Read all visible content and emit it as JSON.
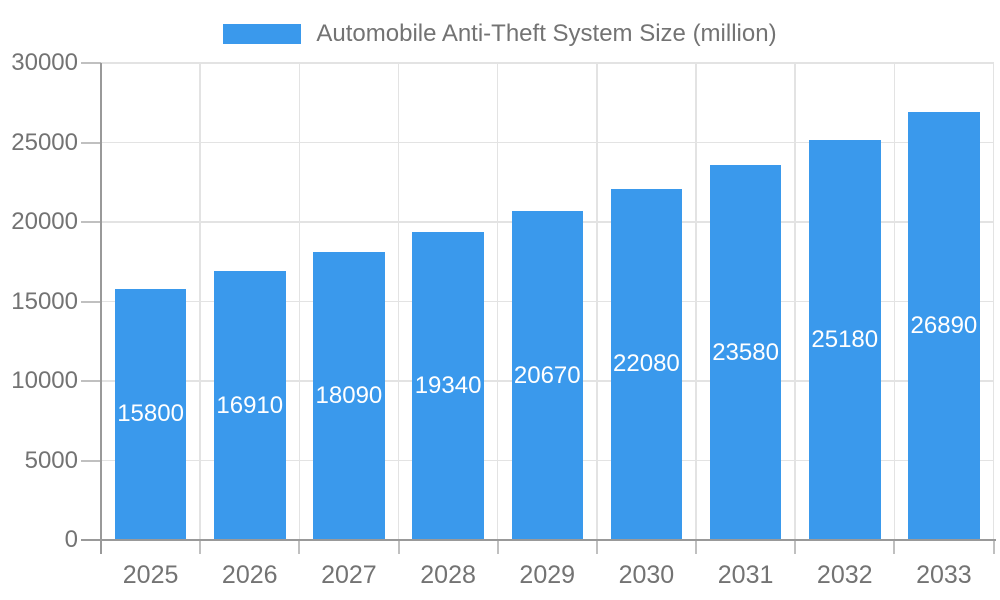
{
  "chart_data": {
    "type": "bar",
    "title": "Automobile Anti-Theft System Size (million)",
    "series_name": "Automobile Anti-Theft System Size (million)",
    "legend_position": "top-center",
    "categories": [
      "2025",
      "2026",
      "2027",
      "2028",
      "2029",
      "2030",
      "2031",
      "2032",
      "2033"
    ],
    "values": [
      15800,
      16910,
      18090,
      19340,
      20670,
      22080,
      23580,
      25180,
      26890
    ],
    "bar_labels": [
      "15800",
      "16910",
      "18090",
      "19340",
      "20670",
      "22080",
      "23580",
      "25180",
      "26890"
    ],
    "xlabel": "",
    "ylabel": "",
    "ylim": [
      0,
      30000
    ],
    "ytick_interval": 5000,
    "yticks": [
      0,
      5000,
      10000,
      15000,
      20000,
      25000,
      30000
    ],
    "ytick_labels": [
      "0",
      "5000",
      "10000",
      "15000",
      "20000",
      "25000",
      "30000"
    ],
    "grid": true,
    "colors": {
      "bar": "#3a99ec",
      "axis_line": "#999999",
      "grid_line": "#e3e3e3",
      "tick_line": "#c0c0c0",
      "axis_text": "#737373",
      "bar_label_text": "#ffffff",
      "background": "#ffffff"
    }
  }
}
